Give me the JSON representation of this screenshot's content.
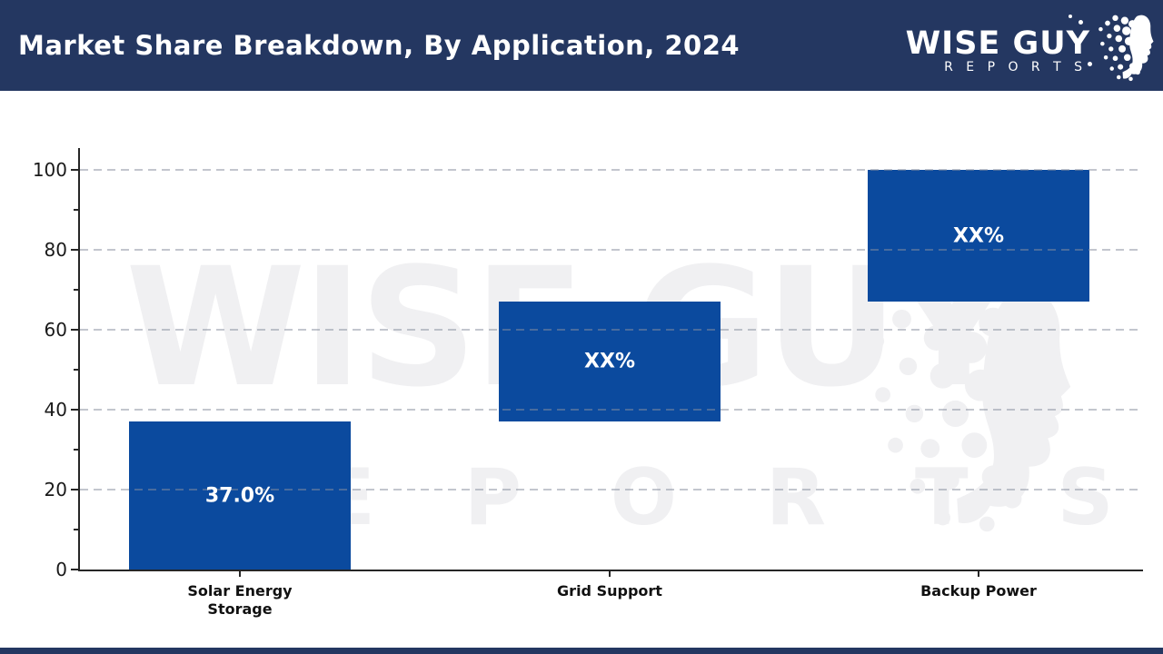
{
  "header": {
    "title": "Market Share Breakdown, By Application, 2024",
    "logo": {
      "line1": "WISE GUY",
      "line2": "R E P O R T S",
      "head_icon": "dotted-face-profile"
    }
  },
  "watermark": {
    "line1": "WISE GUY",
    "line2": "R E P O R T S",
    "head_icon": "dotted-face-profile"
  },
  "colors": {
    "header_navy": "#243761",
    "bar_blue": "#0b4a9e",
    "watermark_gray": "#f0f0f2",
    "gridline": "rgba(135,142,158,0.5)",
    "axis": "#262626",
    "bar_label_text": "#ffffff",
    "title_text": "#ffffff"
  },
  "chart_data": {
    "type": "bar",
    "variant": "waterfall-floating-bars",
    "title": "Market Share Breakdown, By Application, 2024",
    "categories": [
      "Solar Energy Storage",
      "Grid Support",
      "Backup Power"
    ],
    "series": [
      {
        "name": "Market Share (%)",
        "segments": [
          {
            "category": "Solar Energy Storage",
            "start": 0,
            "end": 37,
            "label": "37.0%"
          },
          {
            "category": "Grid Support",
            "start": 37,
            "end": 67,
            "label": "XX%"
          },
          {
            "category": "Backup Power",
            "start": 67,
            "end": 100,
            "label": "XX%"
          }
        ]
      }
    ],
    "xlabel": "",
    "ylabel": "",
    "yticks": [
      0,
      20,
      40,
      60,
      80,
      100
    ],
    "ylim": [
      0,
      105
    ],
    "grid": "horizontal dashed, drawn over bars",
    "legend": "none"
  }
}
